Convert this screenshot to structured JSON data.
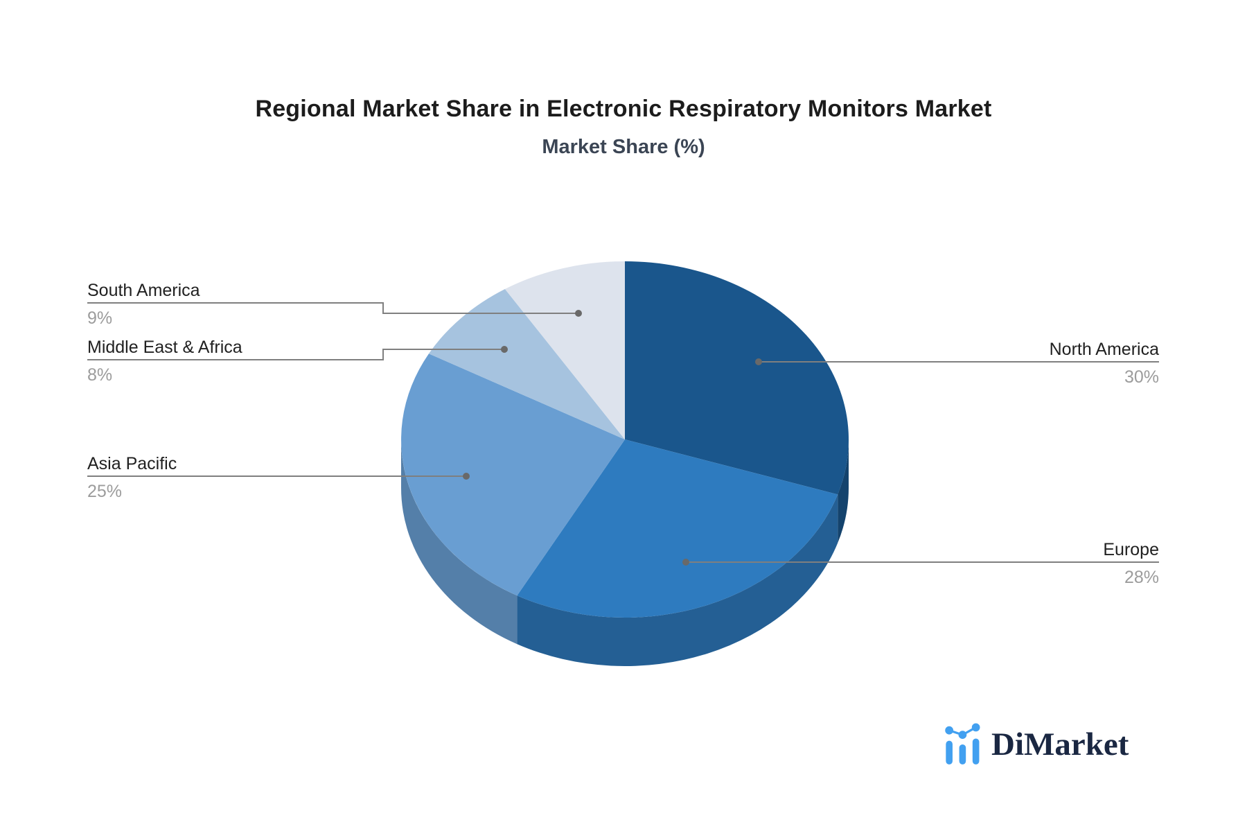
{
  "title": "Regional Market Share in Electronic Respiratory Monitors Market",
  "subtitle": "Market Share (%)",
  "brand": {
    "name": "DiMarket",
    "icon": "bar-line-chart-icon",
    "icon_color": "#42a0f0",
    "text_color": "#1a2742"
  },
  "colors": {
    "background": "#ffffff",
    "title_text": "#1c1c1c",
    "subtitle_text": "#3b4554",
    "label_text": "#212121",
    "percent_text": "#9c9c9c",
    "leader_line": "#7f7f7f",
    "leader_dot": "#696969"
  },
  "chart_data": {
    "type": "pie",
    "title": "Regional Market Share in Electronic Respiratory Monitors Market",
    "subtitle": "Market Share (%)",
    "unit": "%",
    "effect": "3d",
    "start_angle_deg": 0,
    "direction": "clockwise",
    "legend_position": "callout-labels",
    "slices": [
      {
        "label": "North America",
        "value": 30,
        "display": "30%",
        "color": "#1a568c",
        "side_color": "#14436d",
        "label_side": "right"
      },
      {
        "label": "Europe",
        "value": 28,
        "display": "28%",
        "color": "#2e7bbf",
        "side_color": "#245f94",
        "label_side": "right"
      },
      {
        "label": "Asia Pacific",
        "value": 25,
        "display": "25%",
        "color": "#699ed2",
        "side_color": "#547fa9",
        "label_side": "left"
      },
      {
        "label": "Middle East & Africa",
        "value": 8,
        "display": "8%",
        "color": "#a6c3df",
        "side_color": "#859cb2",
        "label_side": "left"
      },
      {
        "label": "South America",
        "value": 9,
        "display": "9%",
        "color": "#dde3ed",
        "side_color": "#b1b6be",
        "label_side": "left"
      }
    ]
  }
}
